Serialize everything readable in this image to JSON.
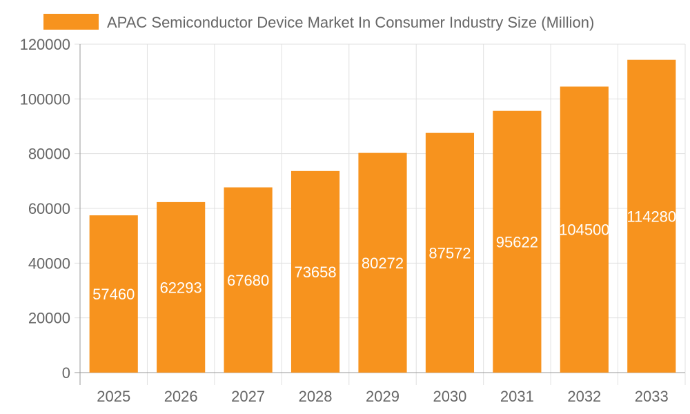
{
  "chart_data": {
    "type": "bar",
    "title": "",
    "xlabel": "",
    "ylabel": "",
    "categories": [
      "2025",
      "2026",
      "2027",
      "2028",
      "2029",
      "2030",
      "2031",
      "2032",
      "2033"
    ],
    "series": [
      {
        "name": "APAC Semiconductor Device Market In Consumer Industry Size (Million)",
        "values": [
          57460,
          62293,
          67680,
          73658,
          80272,
          87572,
          95622,
          104500,
          114280
        ]
      }
    ],
    "ylim": [
      0,
      120000
    ],
    "yticks": [
      0,
      20000,
      40000,
      60000,
      80000,
      100000,
      120000
    ],
    "grid": true,
    "legend_position": "top",
    "data_labels": true,
    "colors": {
      "bar": "#f7931e",
      "grid": "#e0e0e0",
      "axis": "#666666",
      "label": "#ffffff"
    }
  }
}
